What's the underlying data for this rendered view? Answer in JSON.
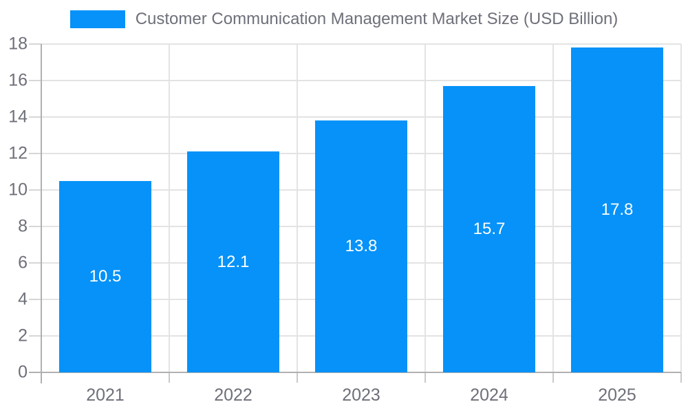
{
  "legend": {
    "label": "Customer Communication Management Market Size (USD Billion)"
  },
  "chart_data": {
    "type": "bar",
    "title": "Customer Communication Management Market Size (USD Billion)",
    "categories": [
      "2021",
      "2022",
      "2023",
      "2024",
      "2025"
    ],
    "values": [
      10.5,
      12.1,
      13.8,
      15.7,
      17.8
    ],
    "value_labels": [
      "10.5",
      "12.1",
      "13.8",
      "15.7",
      "17.8"
    ],
    "ylim": [
      0,
      18
    ],
    "ytick_step": 2,
    "yticks": [
      0,
      2,
      4,
      6,
      8,
      10,
      12,
      14,
      16,
      18
    ],
    "grid": true,
    "legend_position": "top-center",
    "colors": {
      "bar": "#0692f8",
      "value_label": "#ffffff",
      "axis_text": "#6e7079",
      "grid_line": "#e3e3e3",
      "axis_line": "#b0b0b0",
      "tick_line": "#c9c9c9"
    }
  }
}
